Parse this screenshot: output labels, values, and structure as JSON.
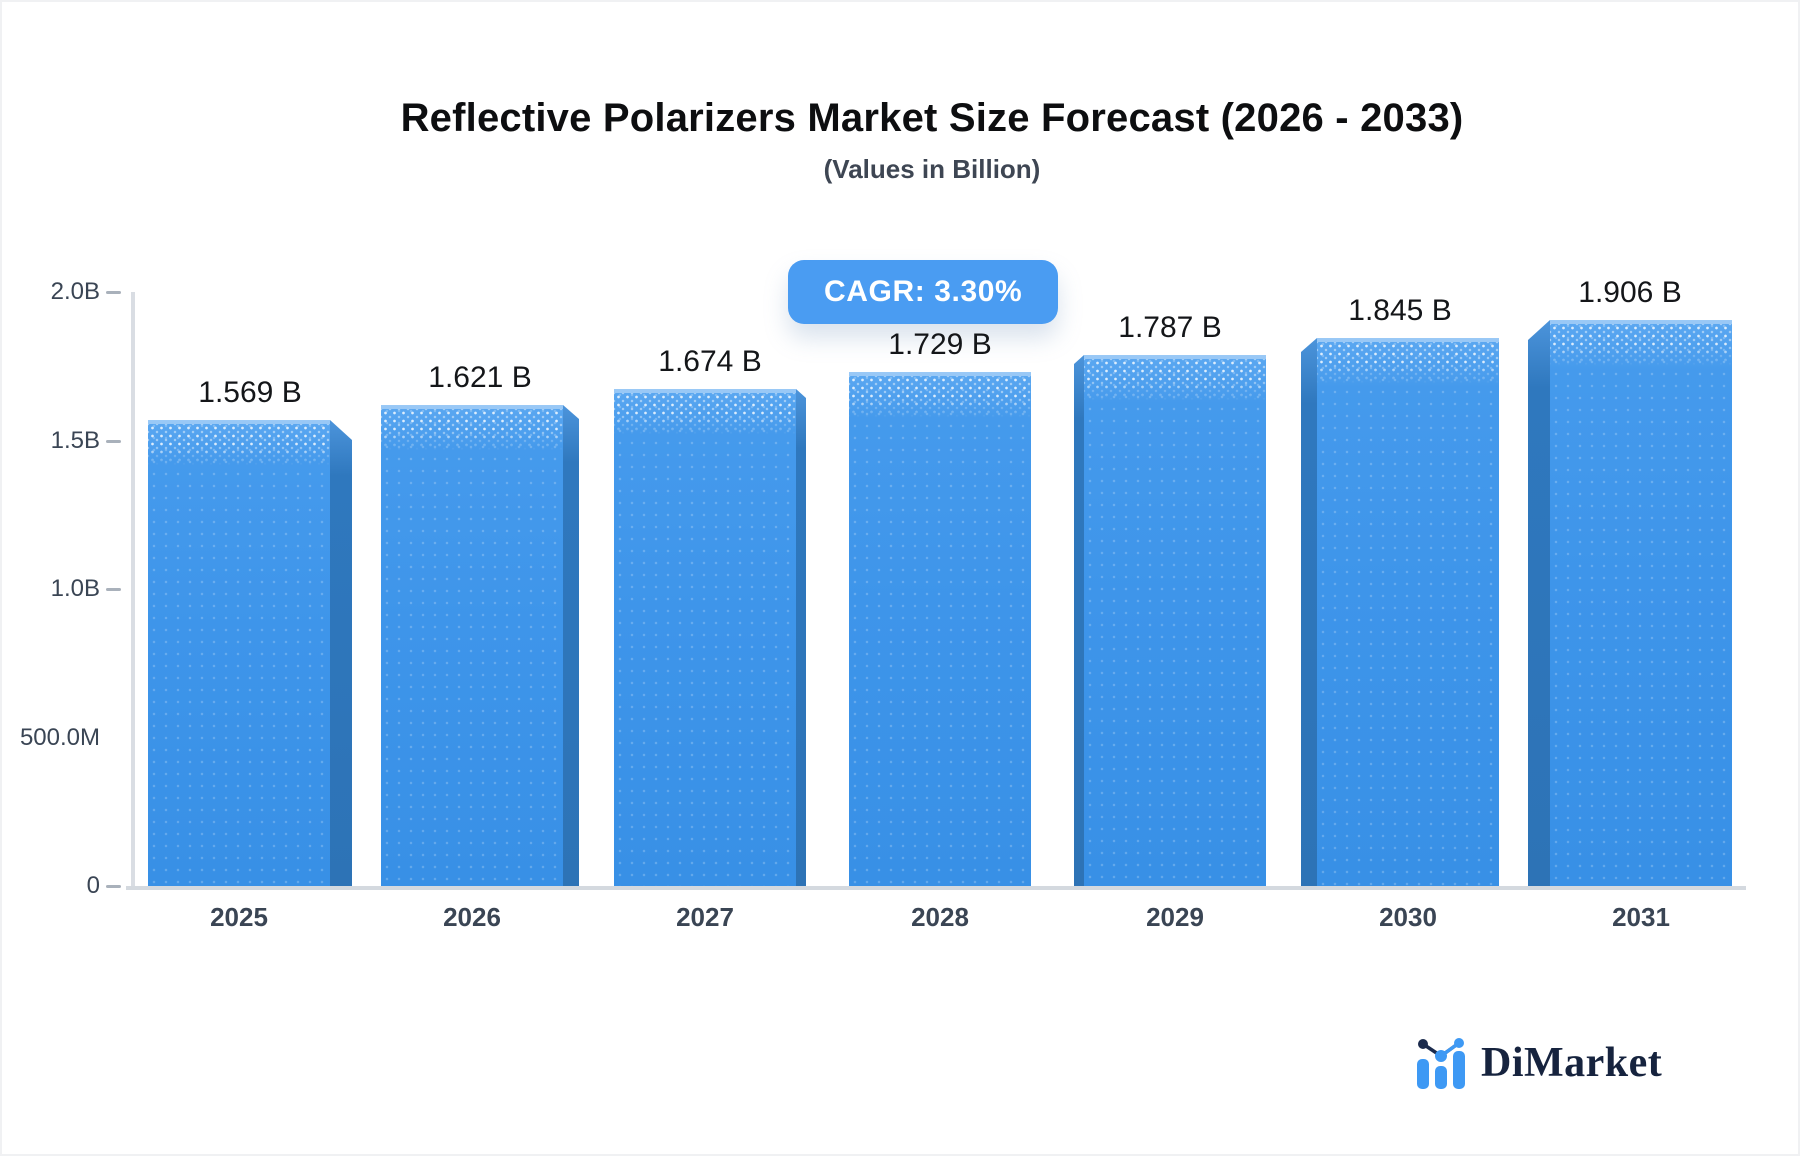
{
  "chart_data": {
    "type": "bar",
    "title": "Reflective Polarizers Market Size Forecast (2026 - 2033)",
    "subtitle": "(Values in Billion)",
    "categories": [
      "2025",
      "2026",
      "2027",
      "2028",
      "2029",
      "2030",
      "2031"
    ],
    "values": [
      1.569,
      1.621,
      1.674,
      1.729,
      1.787,
      1.845,
      1.906
    ],
    "value_labels": [
      "1.569 B",
      "1.621 B",
      "1.674 B",
      "1.729 B",
      "1.787 B",
      "1.845 B",
      "1.906 B"
    ],
    "xlabel": "",
    "ylabel": "",
    "ylim": [
      0,
      2.0
    ],
    "y_ticks": [
      {
        "label": "2.0B",
        "value": 2.0,
        "tick_mark": true
      },
      {
        "label": "1.5B",
        "value": 1.5,
        "tick_mark": true
      },
      {
        "label": "1.0B",
        "value": 1.0,
        "tick_mark": true
      },
      {
        "label": "500.0M",
        "value": 0.5,
        "tick_mark": false
      },
      {
        "label": "0",
        "value": 0.0,
        "tick_mark": true
      }
    ],
    "grid": false,
    "legend": false,
    "bar_style": "3d-perspective"
  },
  "badge": {
    "label": "CAGR: 3.30%"
  },
  "logo": {
    "text": "DiMarket",
    "icon": "bar-line-chart-icon"
  },
  "colors": {
    "bar_face": "#3e95ea",
    "bar_face_top": "#5ca8f1",
    "bar_side": "#2e75ba",
    "badge_bg": "#4a9cf2",
    "badge_text": "#ffffff",
    "axis_line": "#d8dce2",
    "tick_mark": "#a9b1bb",
    "axis_label": "#3a4554",
    "value_label": "#141619",
    "title_color": "#0d0e10",
    "subtitle_color": "#3e4653",
    "logo_navy": "#16233e",
    "logo_blue": "#3e99f4"
  }
}
